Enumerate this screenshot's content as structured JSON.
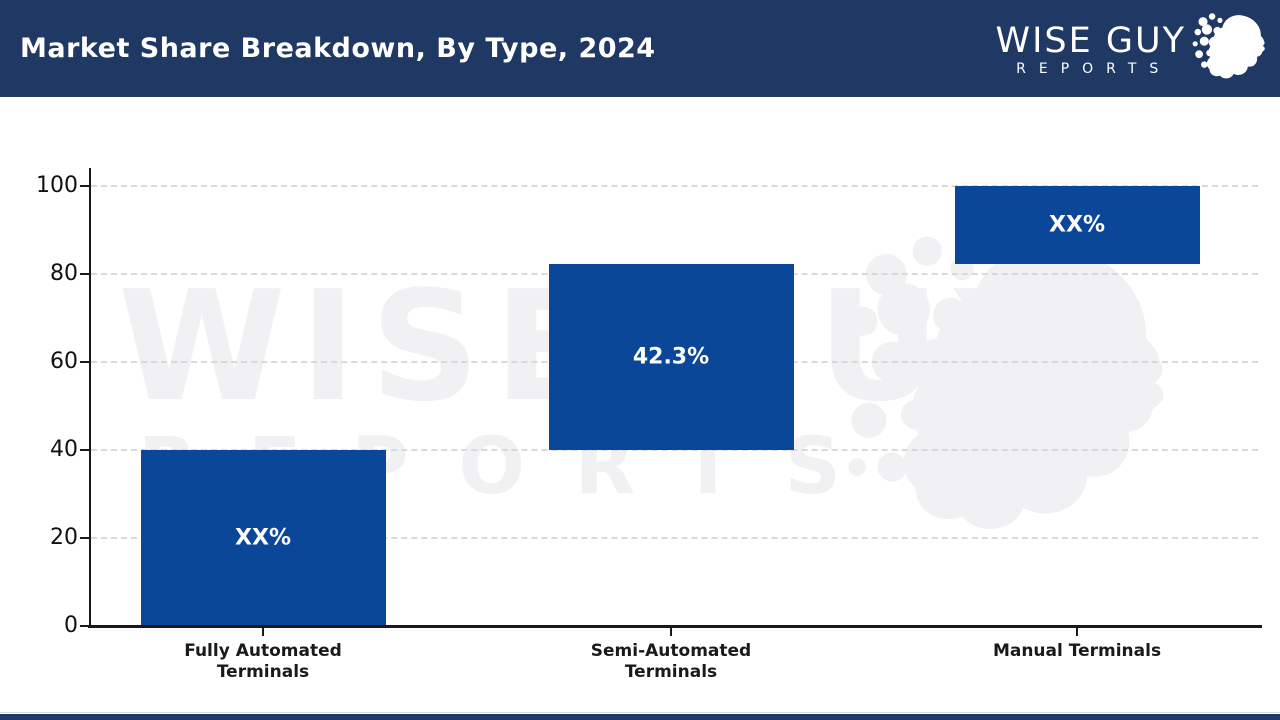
{
  "header": {
    "title": "Market Share Breakdown, By Type, 2024",
    "logo": {
      "line1": "WISE GUY",
      "line2": "REPORTS"
    }
  },
  "watermark": {
    "line1": "WISE GUY",
    "line2": "REPORTS"
  },
  "colors": {
    "header_bg": "#203864",
    "bar_fill": "#0b4798",
    "gridline": "#d9d9d9",
    "axis": "#1a1a1a",
    "bar_label_text": "#ffffff",
    "watermark": "#f1f1f4"
  },
  "chart_data": {
    "type": "bar",
    "subtype": "waterfall",
    "title": "Market Share Breakdown, By Type, 2024",
    "categories": [
      [
        "Fully Automated",
        "Terminals"
      ],
      [
        "Semi-Automated",
        "Terminals"
      ],
      [
        "Manual Terminals"
      ]
    ],
    "segments": [
      {
        "start": 0,
        "end": 40,
        "value": 40,
        "label": "XX%"
      },
      {
        "start": 40,
        "end": 82.3,
        "value": 42.3,
        "label": "42.3%"
      },
      {
        "start": 82.3,
        "end": 100,
        "value": 17.7,
        "label": "XX%"
      }
    ],
    "ylim": [
      0,
      100
    ],
    "yticks": [
      0,
      20,
      40,
      60,
      80,
      100
    ],
    "xlabel": "",
    "ylabel": "",
    "grid": "horizontal-dashed",
    "legend": "none"
  }
}
